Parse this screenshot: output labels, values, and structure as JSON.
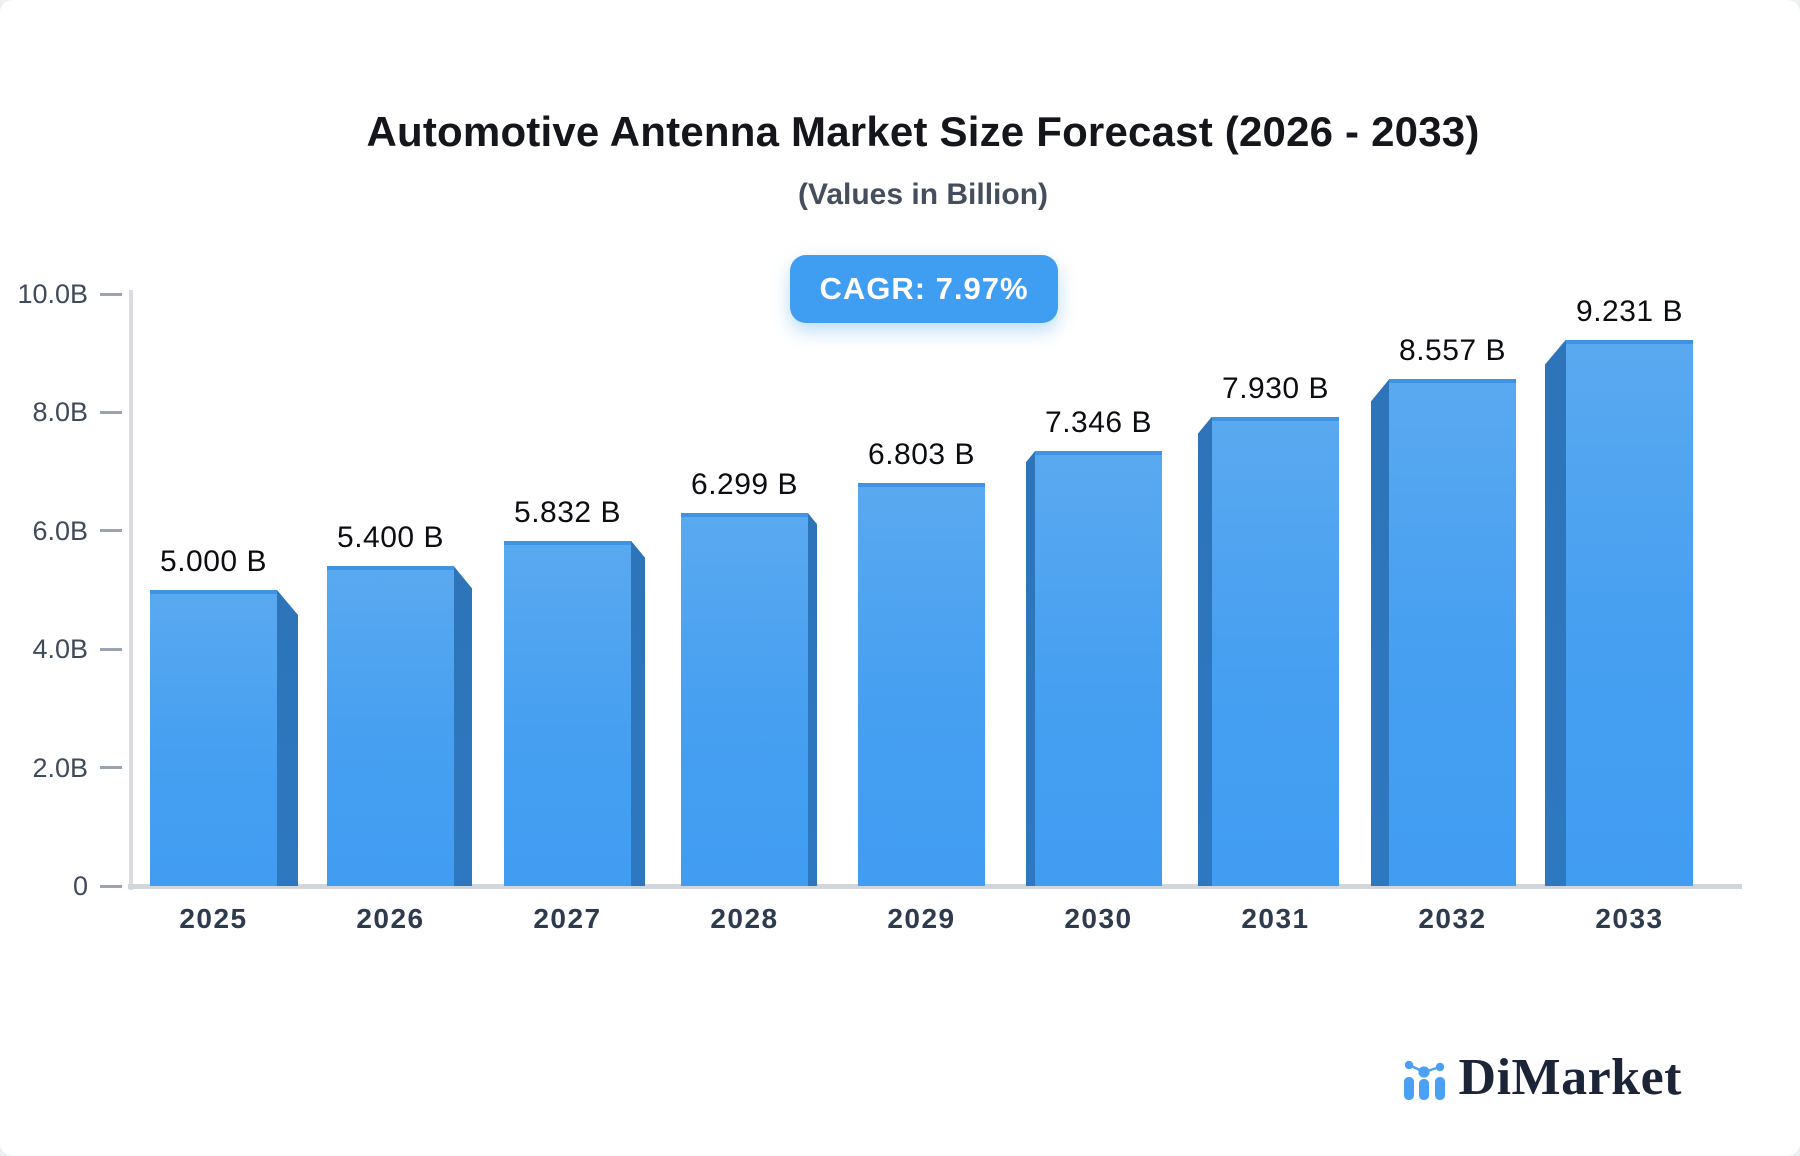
{
  "chart_data": {
    "type": "bar",
    "title": "Automotive Antenna Market Size Forecast (2026 - 2033)",
    "subtitle": "(Values in Billion)",
    "cagr_label": "CAGR: 7.97%",
    "categories": [
      "2025",
      "2026",
      "2027",
      "2028",
      "2029",
      "2030",
      "2031",
      "2032",
      "2033"
    ],
    "values": [
      5.0,
      5.4,
      5.832,
      6.299,
      6.803,
      7.346,
      7.93,
      8.557,
      9.231
    ],
    "value_labels": [
      "5.000 B",
      "5.400 B",
      "5.832 B",
      "6.299 B",
      "6.803 B",
      "7.346 B",
      "7.930 B",
      "8.557 B",
      "9.231 B"
    ],
    "yticks": [
      {
        "value": 10,
        "label": "10.0B"
      },
      {
        "value": 8,
        "label": "8.0B"
      },
      {
        "value": 6,
        "label": "6.0B"
      },
      {
        "value": 4,
        "label": "4.0B"
      },
      {
        "value": 2,
        "label": "2.0B"
      },
      {
        "value": 0,
        "label": "0"
      }
    ],
    "ylim": [
      0,
      10
    ],
    "grid": false,
    "legend": false,
    "bar_style": "3d-perspective-from-center",
    "colors": {
      "bar_face": "#469ff1",
      "bar_face_light": "#59a9f0",
      "bar_top_edge": "#3e93e2",
      "bar_side": "#2d74b8",
      "badge_bg": "#3f9df2",
      "badge_text": "#ffffff",
      "axis_line": "#d2d5d9",
      "tick_label": "#3f4a5a",
      "category_label": "#2e3a4e",
      "value_label": "#0b0d10"
    }
  },
  "logo": {
    "text": "DiMarket",
    "icon": "mini-bar-chart-icon",
    "text_color": "#1c2438",
    "icon_color": "#4aa1f3"
  }
}
